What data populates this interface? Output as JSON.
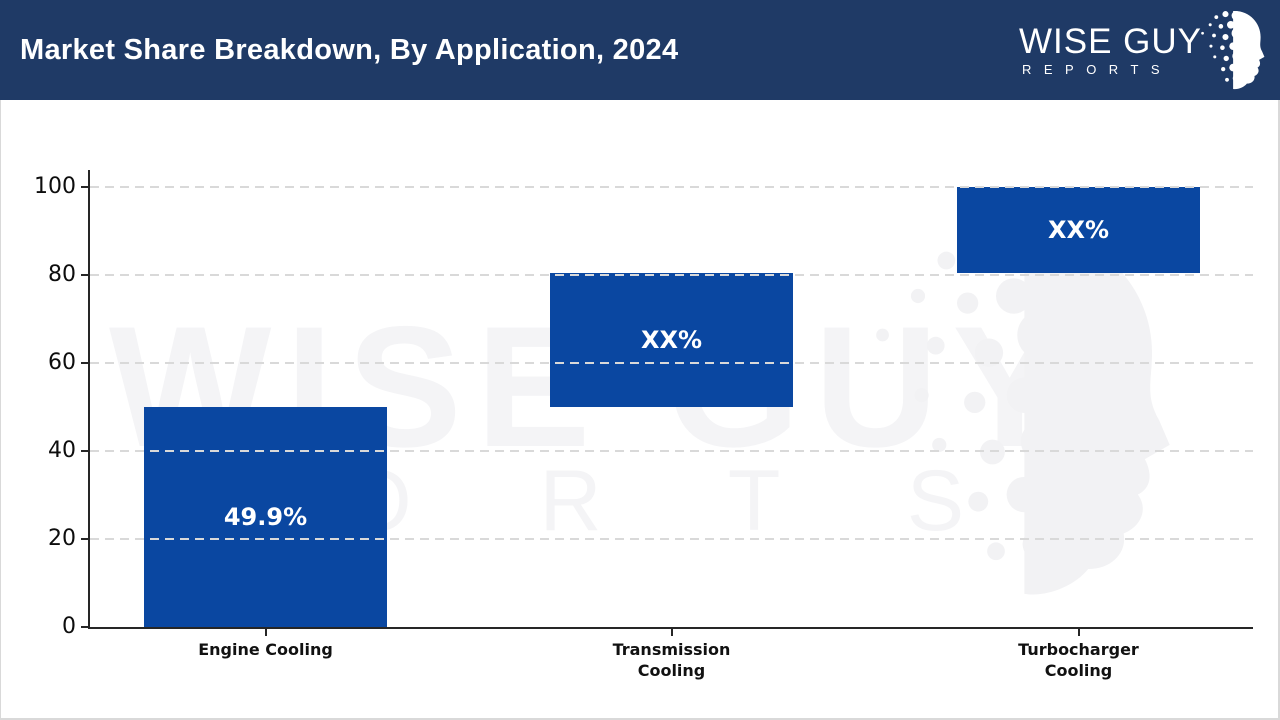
{
  "header": {
    "title": "Market Share Breakdown, By Application, 2024",
    "logo": {
      "name_line": "WISE GUY",
      "sub_line": "REPORTS",
      "face_icon": "dotted-head-profile"
    },
    "background_color": "#1f3a66"
  },
  "watermark": {
    "line1": "WISE GUY",
    "line2": "P O R T S",
    "face_icon": "dotted-head-profile"
  },
  "chart_data": {
    "type": "bar",
    "variant": "floating-waterfall",
    "title": "Market Share Breakdown, By Application, 2024",
    "categories": [
      "Engine Cooling",
      "Transmission Cooling",
      "Turbocharger Cooling"
    ],
    "categories_lines": [
      [
        "Engine Cooling"
      ],
      [
        "Transmission",
        "Cooling"
      ],
      [
        "Turbocharger",
        "Cooling"
      ]
    ],
    "segments": [
      {
        "category": "Engine Cooling",
        "start": 0,
        "end": 49.9,
        "label": "49.9%"
      },
      {
        "category": "Transmission Cooling",
        "start": 49.9,
        "end": 80.4,
        "label": "XX%"
      },
      {
        "category": "Turbocharger Cooling",
        "start": 80.5,
        "end": 100,
        "label": "XX%"
      }
    ],
    "yticks": [
      0,
      20,
      40,
      60,
      80,
      100
    ],
    "ylim": [
      0,
      103.9
    ],
    "grid": true,
    "legend": false,
    "xlabel": "",
    "ylabel": "",
    "colors": {
      "bar": "#0a47a1",
      "bar_label": "#ffffff",
      "grid": "#d9d9d9",
      "axis": "#262626",
      "header_bg": "#1f3a66",
      "watermark": "#f4f4f6"
    }
  }
}
